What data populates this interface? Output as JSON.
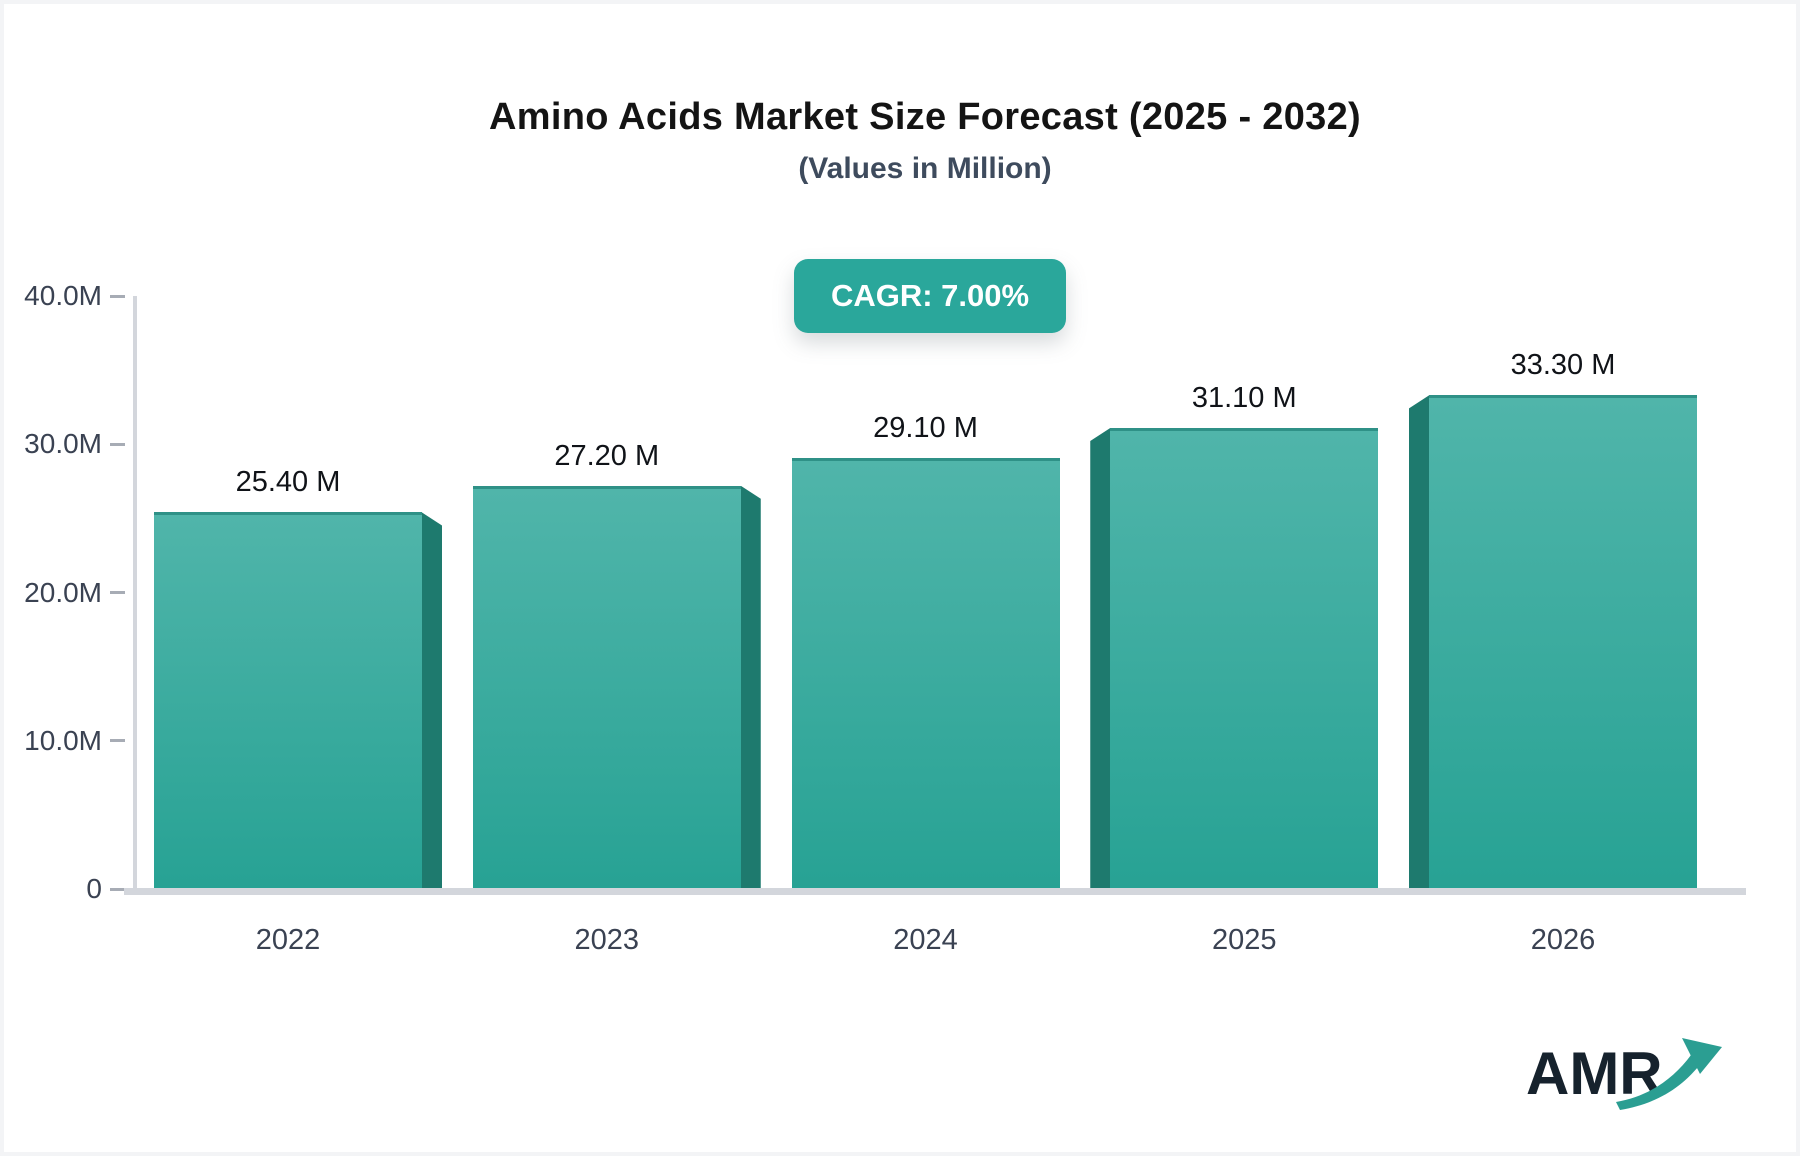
{
  "page": {
    "background": "#f3f4f6",
    "card_background": "#ffffff"
  },
  "header": {
    "title": "Amino Acids Market Size Forecast (2025 - 2032)",
    "subtitle": "(Values in Million)"
  },
  "badge": {
    "label": "CAGR: 7.00%",
    "background": "#2aa79b",
    "text_color": "#ffffff"
  },
  "chart_data": {
    "type": "bar",
    "title": "Amino Acids Market Size Forecast (2025 - 2032)",
    "subtitle": "(Values in Million)",
    "annotation": "CAGR: 7.00%",
    "categories": [
      "2022",
      "2023",
      "2024",
      "2025",
      "2026"
    ],
    "values": [
      25.4,
      27.2,
      29.1,
      31.1,
      33.3
    ],
    "value_labels": [
      "25.40 M",
      "27.20 M",
      "29.10 M",
      "31.10 M",
      "33.30 M"
    ],
    "ylim": [
      0,
      40
    ],
    "yticks": [
      {
        "value": 40,
        "label": "40.0M"
      },
      {
        "value": 30,
        "label": "30.0M"
      },
      {
        "value": 20,
        "label": "20.0M"
      },
      {
        "value": 10,
        "label": "10.0M"
      },
      {
        "value": 0,
        "label": "0"
      }
    ],
    "xlabel": "",
    "ylabel": "",
    "grid": false,
    "legend": false,
    "style": "pseudo-3d perspective bars, depth face toward center bar",
    "colors": {
      "face_top": "#50b5aa",
      "face_bottom": "#27a294",
      "face_top_edge": "#2f9187",
      "side_face": "#1e7a6e",
      "axis_line": "#d3d6dc",
      "tick_dash": "#a7acb5",
      "tick_text": "#3a4252",
      "value_text": "#101318"
    }
  },
  "logo": {
    "text": "AMR",
    "text_color": "#16222d",
    "arrow_color": "#2b9e92"
  }
}
